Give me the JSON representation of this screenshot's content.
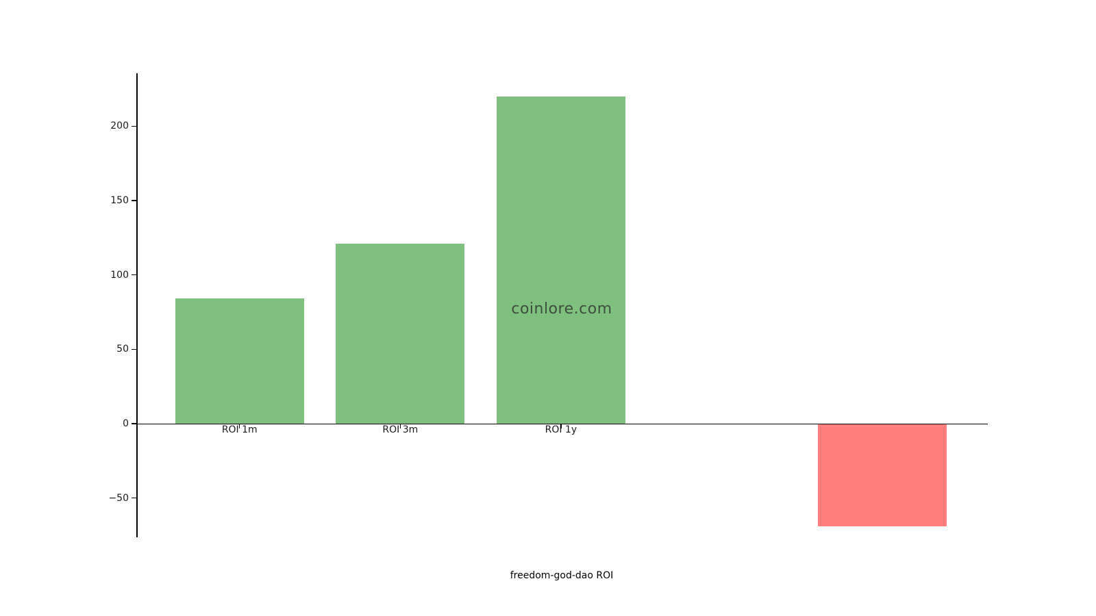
{
  "chart_data": {
    "type": "bar",
    "title": "freedom-god-dao ROI",
    "watermark": "coinlore.com",
    "categories": [
      "ROI 1m",
      "ROI 3m",
      "ROI 1y",
      ""
    ],
    "values": [
      84,
      121,
      220,
      -69
    ],
    "bar_colors": [
      "#7fbf7f",
      "#7fbf7f",
      "#7fbf7f",
      "#ff7f7f"
    ],
    "slots": [
      0,
      1,
      2,
      4
    ],
    "num_slots": 5,
    "positive_color": "#7fbf7f",
    "negative_color": "#ff7f7f",
    "axis_color": "#000000",
    "tick_text_color": "#1a1a1a",
    "yticks": [
      -50,
      0,
      50,
      100,
      150,
      200
    ],
    "ylim": [
      -76,
      236
    ],
    "xlabel": "freedom-god-dao ROI",
    "ylabel": "",
    "grid": false,
    "legend": null
  }
}
